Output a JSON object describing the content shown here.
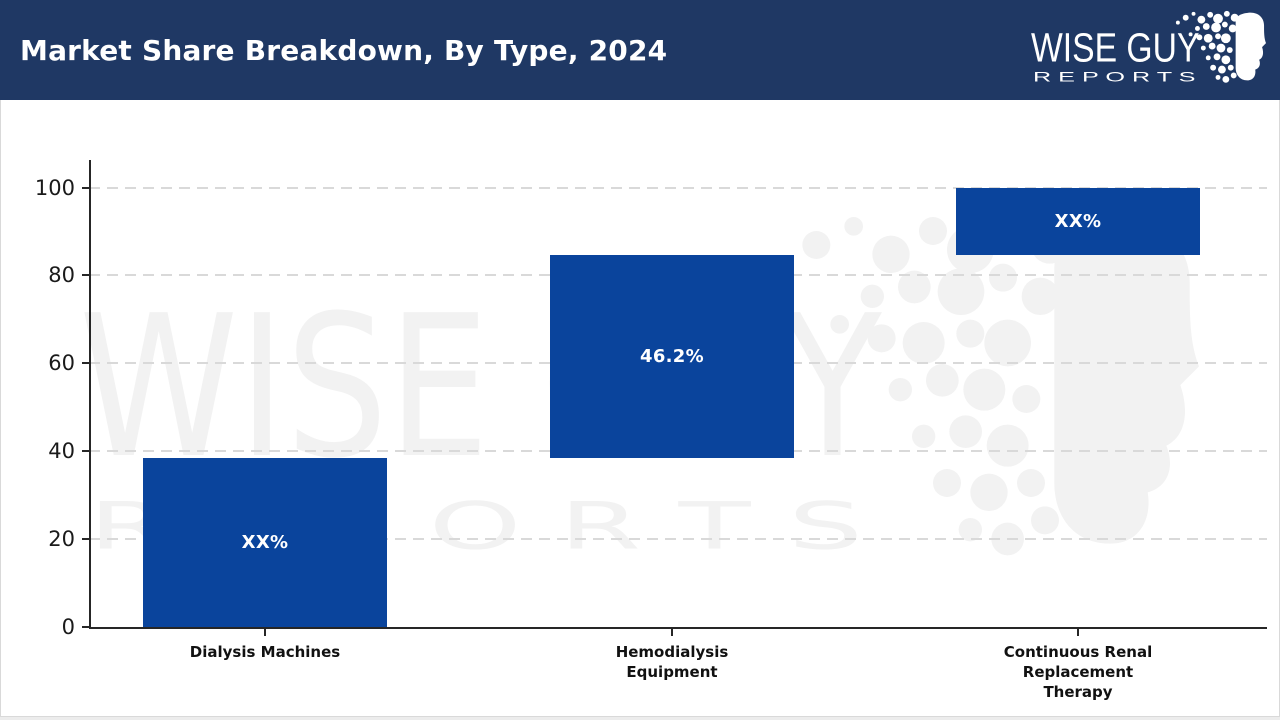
{
  "header": {
    "title": "Market Share Breakdown, By Type, 2024",
    "bg_color": "#1f3864",
    "logo": {
      "line1": "WISE GUY",
      "line2": "R E P O R T S"
    }
  },
  "watermark": {
    "line1": "WISE GUY",
    "line2": "R E P O R T S"
  },
  "chart_data": {
    "type": "bar",
    "subtype": "waterfall-stacked-segments",
    "title": "Market Share Breakdown, By Type, 2024",
    "categories": [
      "Dialysis Machines",
      "Hemodialysis\nEquipment",
      "Continuous Renal\nReplacement\nTherapy"
    ],
    "values": [
      38.5,
      46.2,
      15.3
    ],
    "segment_starts": [
      0,
      38.5,
      84.7
    ],
    "segment_ends": [
      38.5,
      84.7,
      100
    ],
    "bar_labels": [
      "XX%",
      "46.2%",
      "XX%"
    ],
    "xlabel": "",
    "ylabel": "",
    "ylim": [
      0,
      100
    ],
    "yticks": [
      0,
      20,
      40,
      60,
      80,
      100
    ],
    "grid": "horizontal-dashed",
    "legend": "none",
    "bar_color": "#0a449c",
    "bar_label_color": "#ffffff",
    "axis_color": "#262626",
    "grid_color": "#d9d9d9",
    "tick_label_color": "#1a1a1a",
    "category_label_color": "#111111"
  }
}
